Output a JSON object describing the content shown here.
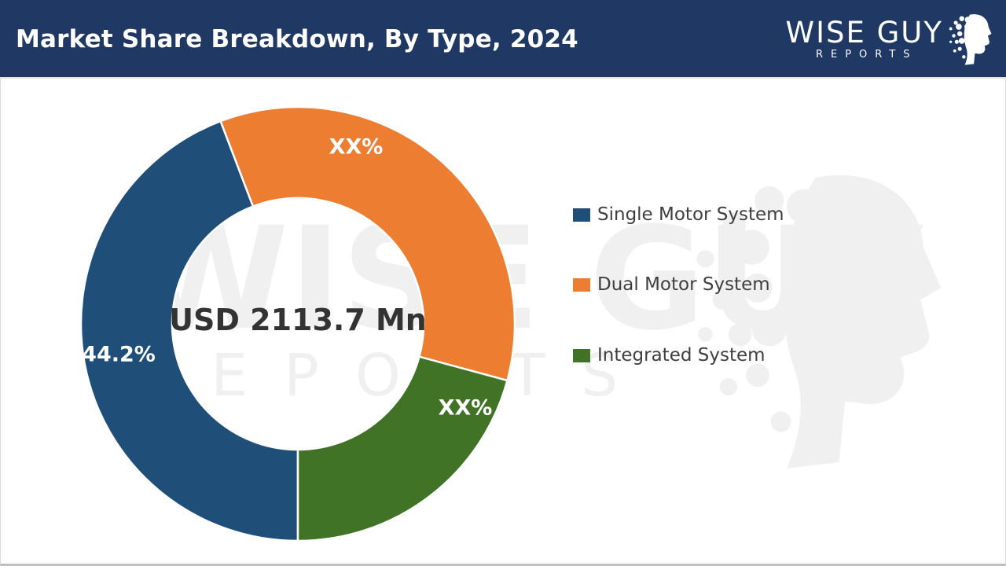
{
  "header": {
    "title": "Market Share Breakdown, By Type, 2024",
    "bg_color": "#1f3864",
    "logo": {
      "wordmark": "WISE GUY",
      "subtext": "REPORTS"
    }
  },
  "chart_data": {
    "type": "pie",
    "subtype": "donut",
    "title": "Market Share Breakdown, By Type, 2024",
    "center_label": "USD 2113.7 Mn",
    "legend_position": "right",
    "start_angle_deg_clockwise_from_top": 180,
    "slices": [
      {
        "name": "Single Motor System",
        "arc_pct": 44.2,
        "label": "44.2%",
        "color": "#1f4e79"
      },
      {
        "name": "Dual Motor System",
        "arc_pct": 35.0,
        "label": "XX%",
        "color": "#ed7d31"
      },
      {
        "name": "Integrated System",
        "arc_pct": 20.8,
        "label": "XX%",
        "color": "#417326"
      }
    ]
  },
  "watermark": {
    "line1": "WISE GUY",
    "line2": "REPORTS"
  },
  "colors": {
    "header_navy": "#1f3864",
    "center_text": "#333333",
    "legend_text": "#3f3f3f",
    "watermark_gray": "#f0f0f0"
  }
}
